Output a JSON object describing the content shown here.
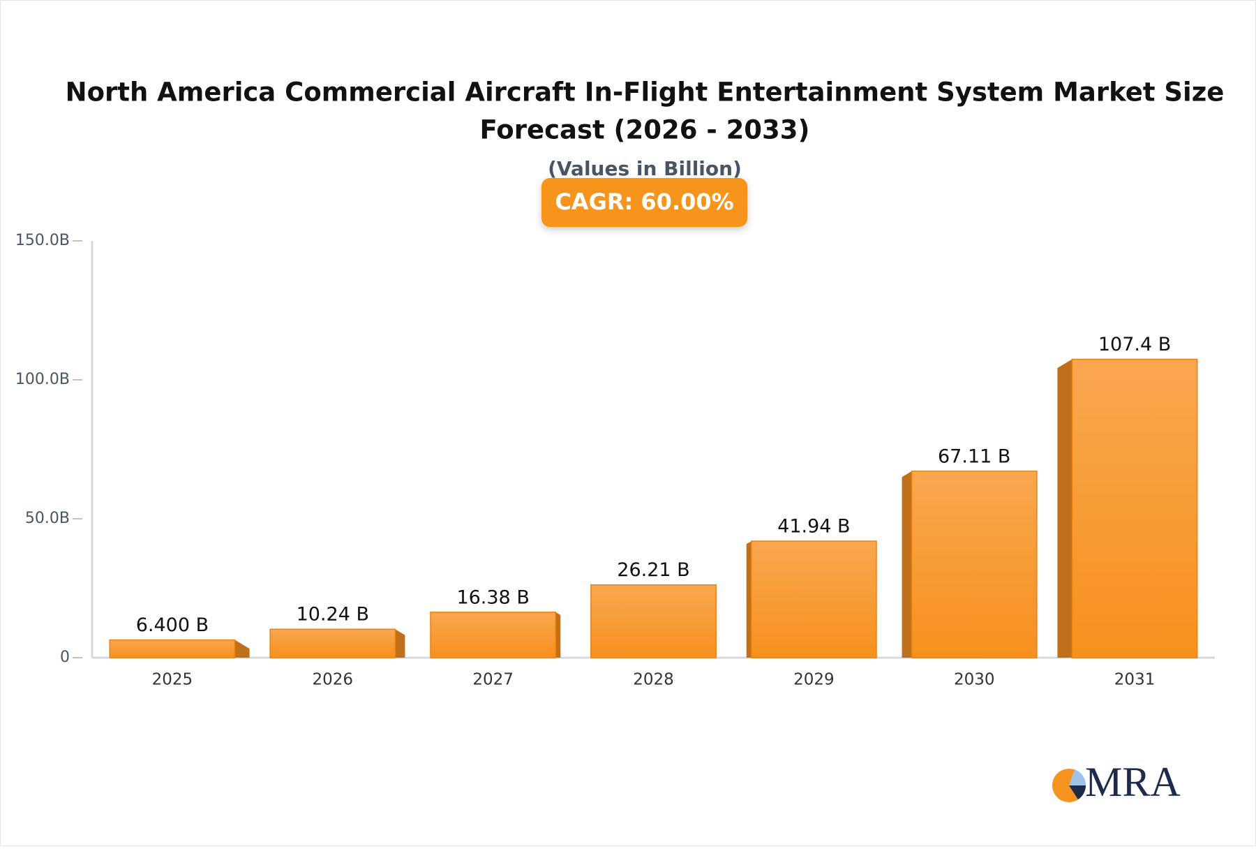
{
  "chart_data": {
    "type": "bar",
    "title_lines": [
      "North America Commercial Aircraft In-Flight Entertainment System Market Size",
      "Forecast (2026 - 2033)"
    ],
    "subtitle": "(Values in Billion)",
    "badge": "CAGR: 60.00%",
    "logo": "MRA",
    "categories": [
      "2025",
      "2026",
      "2027",
      "2028",
      "2029",
      "2030",
      "2031"
    ],
    "values": [
      6.4,
      10.24,
      16.38,
      26.21,
      41.94,
      67.11,
      107.4
    ],
    "value_labels": [
      "6.400 B",
      "10.24 B",
      "16.38 B",
      "26.21 B",
      "41.94 B",
      "67.11 B",
      "107.4 B"
    ],
    "color": "#f7941f",
    "ylim": [
      0,
      150
    ],
    "yticks": [
      0,
      {
        "value": 50,
        "label": "50.0B"
      },
      {
        "value": 100,
        "label": "100.0B"
      },
      {
        "value": 150,
        "label": "150.0B"
      }
    ],
    "grid": false
  }
}
